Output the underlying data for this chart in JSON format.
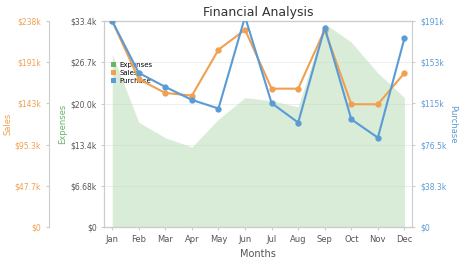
{
  "title": "Financial Analysis",
  "xlabel": "Months",
  "months": [
    "Jan",
    "Feb",
    "Mar",
    "Apr",
    "May",
    "Jun",
    "Jul",
    "Aug",
    "Sep",
    "Oct",
    "Nov",
    "Dec"
  ],
  "expenses": [
    28000,
    17000,
    14500,
    13000,
    17500,
    21000,
    20500,
    19500,
    33000,
    30000,
    25000,
    21000
  ],
  "sales": [
    238000,
    171000,
    155000,
    152000,
    205000,
    228000,
    160000,
    160000,
    228000,
    142000,
    142000,
    178000
  ],
  "purchase": [
    191000,
    143000,
    130000,
    118000,
    110000,
    195000,
    115000,
    97000,
    185000,
    100000,
    83000,
    175000
  ],
  "expenses_color": "#6ab56a",
  "sales_color": "#f0a050",
  "purchase_color": "#5b9bd5",
  "area_color": "#b8ddb8",
  "left_outer_yticks": [
    0,
    47700,
    95300,
    143000,
    191000,
    238000
  ],
  "left_outer_yticklabels": [
    "$0",
    "$47.7k",
    "$95.3k",
    "$143k",
    "$191k",
    "$238k"
  ],
  "left_inner_yticks": [
    0,
    6680,
    13400,
    20000,
    26700,
    33400
  ],
  "left_inner_yticklabels": [
    "$0",
    "$6.68k",
    "$13.4k",
    "$20.0k",
    "$26.7k",
    "$33.4k"
  ],
  "right_yticks": [
    0,
    38300,
    76500,
    115000,
    153000,
    191000
  ],
  "right_yticklabels": [
    "$0",
    "$38.3k",
    "$76.5k",
    "$115k",
    "$153k",
    "$191k"
  ],
  "expenses_ylim": [
    0,
    33400
  ],
  "sales_ylim": [
    0,
    238000
  ],
  "purchase_ylim": [
    0,
    191000
  ],
  "expenses_label": "Expenses",
  "sales_label": "Sales",
  "purchase_label": "Purchase",
  "bg_color": "#ffffff",
  "grid_color": "#e8e8e8",
  "tick_color": "#888888",
  "label_color": "#555555"
}
